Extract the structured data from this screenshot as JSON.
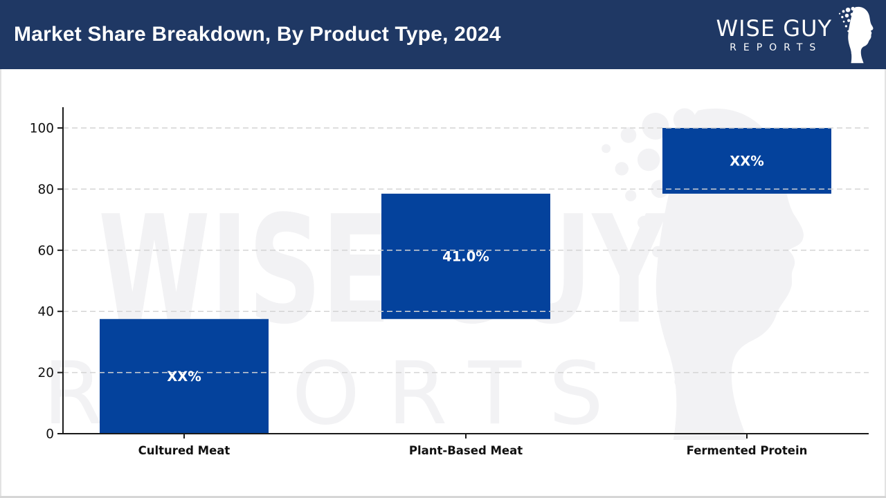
{
  "header": {
    "title": "Market Share Breakdown, By Product Type, 2024",
    "logo": {
      "line1": "WISE GUY",
      "line2": "REPORTS"
    }
  },
  "watermark": {
    "line1": "WISE GUY",
    "line2": "REPORTS"
  },
  "colors": {
    "header_bg": "#1f3864",
    "bar": "#04429c",
    "grid": "#d4d4d4",
    "axis": "#1a1a1a",
    "tick_text": "#111111",
    "bar_label_text": "#ffffff",
    "watermark": "#f2f2f4"
  },
  "chart_data": {
    "type": "bar",
    "subtype": "waterfall",
    "title": "Market Share Breakdown, By Product Type, 2024",
    "categories": [
      "Cultured Meat",
      "Plant-Based Meat",
      "Fermented Protein"
    ],
    "series": [
      {
        "name": "Market share (%)",
        "segments": [
          {
            "category": "Cultured Meat",
            "start": 0,
            "end": 37.5,
            "label": "XX%"
          },
          {
            "category": "Plant-Based Meat",
            "start": 37.5,
            "end": 78.5,
            "label": "41.0%"
          },
          {
            "category": "Fermented Protein",
            "start": 78.5,
            "end": 100,
            "label": "XX%"
          }
        ]
      }
    ],
    "xlabel": "",
    "ylabel": "",
    "yticks": [
      0,
      20,
      40,
      60,
      80,
      100
    ],
    "ylim": [
      0,
      106
    ],
    "grid": "horizontal-dashed",
    "legend": "none"
  }
}
